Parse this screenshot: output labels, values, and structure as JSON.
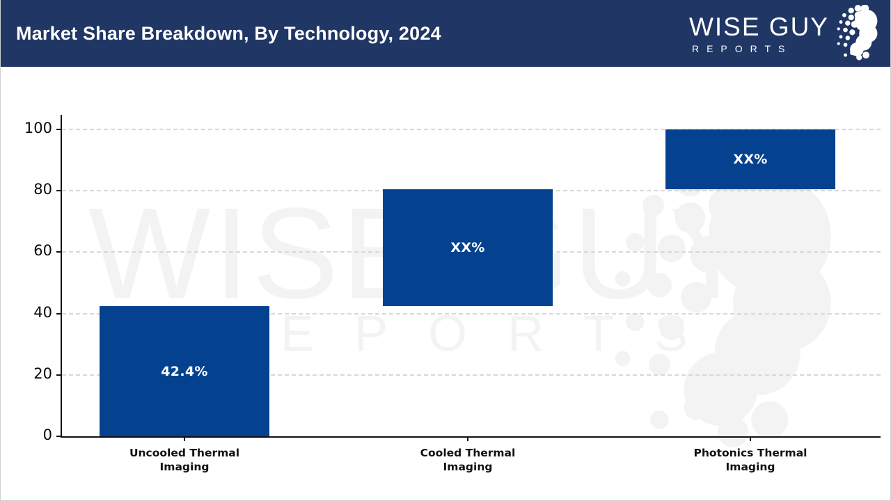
{
  "header": {
    "title": "Market Share Breakdown, By Technology, 2024",
    "logo": {
      "primary": "WISE GUY",
      "secondary": "REPORTS"
    }
  },
  "watermark": {
    "primary": "WISE GUY",
    "secondary": "REPORTS"
  },
  "chart_data": {
    "type": "bar",
    "subtype": "waterfall",
    "title": "Market Share Breakdown, By Technology, 2024",
    "categories": [
      "Uncooled Thermal Imaging",
      "Cooled Thermal Imaging",
      "Photonics Thermal Imaging"
    ],
    "series": [
      {
        "name": "Market Share (%)",
        "segments": [
          {
            "category": "Uncooled Thermal Imaging",
            "start": 0,
            "end": 42.4,
            "label": "42.4%"
          },
          {
            "category": "Cooled Thermal Imaging",
            "start": 42.4,
            "end": 80.6,
            "label": "XX%"
          },
          {
            "category": "Photonics Thermal Imaging",
            "start": 80.6,
            "end": 100,
            "label": "XX%"
          }
        ]
      }
    ],
    "xlabel": "",
    "ylabel": "",
    "ylim": [
      0,
      100
    ],
    "yticks": [
      0,
      20,
      40,
      60,
      80,
      100
    ],
    "grid": {
      "horizontal": true,
      "style": "dashed"
    },
    "legend": "none"
  },
  "colors": {
    "header_bg": "#203664",
    "header_text": "#ffffff",
    "bar": "#04418f",
    "bar_label": "#ffffff",
    "grid": "#d8d8d8",
    "axis": "#111111",
    "watermark": "#f3f3f3",
    "border": "#cfcfcf"
  }
}
